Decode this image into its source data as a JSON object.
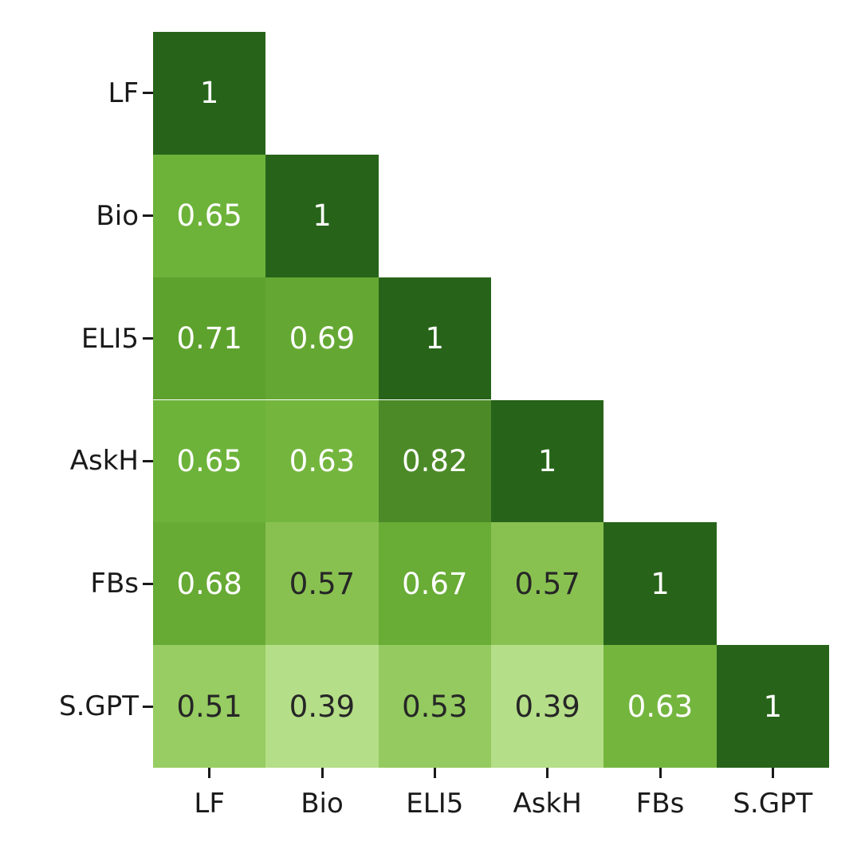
{
  "chart_data": {
    "type": "heatmap",
    "title": "",
    "subtitle": "",
    "xlabel": "",
    "ylabel": "",
    "legend": "none",
    "grid": false,
    "shape": "lower-triangular",
    "categories_x": [
      "LF",
      "Bio",
      "ELI5",
      "AskH",
      "FBs",
      "S.GPT"
    ],
    "categories_y": [
      "LF",
      "Bio",
      "ELI5",
      "AskH",
      "FBs",
      "S.GPT"
    ],
    "values": [
      [
        1,
        null,
        null,
        null,
        null,
        null
      ],
      [
        0.65,
        1,
        null,
        null,
        null,
        null
      ],
      [
        0.71,
        0.69,
        1,
        null,
        null,
        null
      ],
      [
        0.65,
        0.63,
        0.82,
        1,
        null,
        null
      ],
      [
        0.68,
        0.57,
        0.67,
        0.57,
        1,
        null
      ],
      [
        0.51,
        0.39,
        0.53,
        0.39,
        0.63,
        1
      ]
    ],
    "annotations": [
      [
        "1"
      ],
      [
        "0.65",
        "1"
      ],
      [
        "0.71",
        "0.69",
        "1"
      ],
      [
        "0.65",
        "0.63",
        "0.82",
        "1"
      ],
      [
        "0.68",
        "0.57",
        "0.67",
        "0.57",
        "1"
      ],
      [
        "0.51",
        "0.39",
        "0.53",
        "0.39",
        "0.63",
        "1"
      ]
    ],
    "value_range": [
      0.39,
      1
    ],
    "color_scale": {
      "1": "#276419",
      "0.82": "#4c8a28",
      "0.71": "#5ea22e",
      "0.69": "#64a833",
      "0.68": "#67aa34",
      "0.67": "#69ac36",
      "0.65": "#6db33a",
      "0.63": "#74b53e",
      "0.57": "#89c151",
      "0.53": "#94ca60",
      "0.51": "#97cd63",
      "0.39": "#b5de88"
    },
    "annotation_colors": {
      "on_dark_cell": "#ffffff",
      "on_light_cell": "#262626",
      "light_cell_max_value": 0.57
    },
    "axis_tick_color": "#1a1a1a"
  }
}
